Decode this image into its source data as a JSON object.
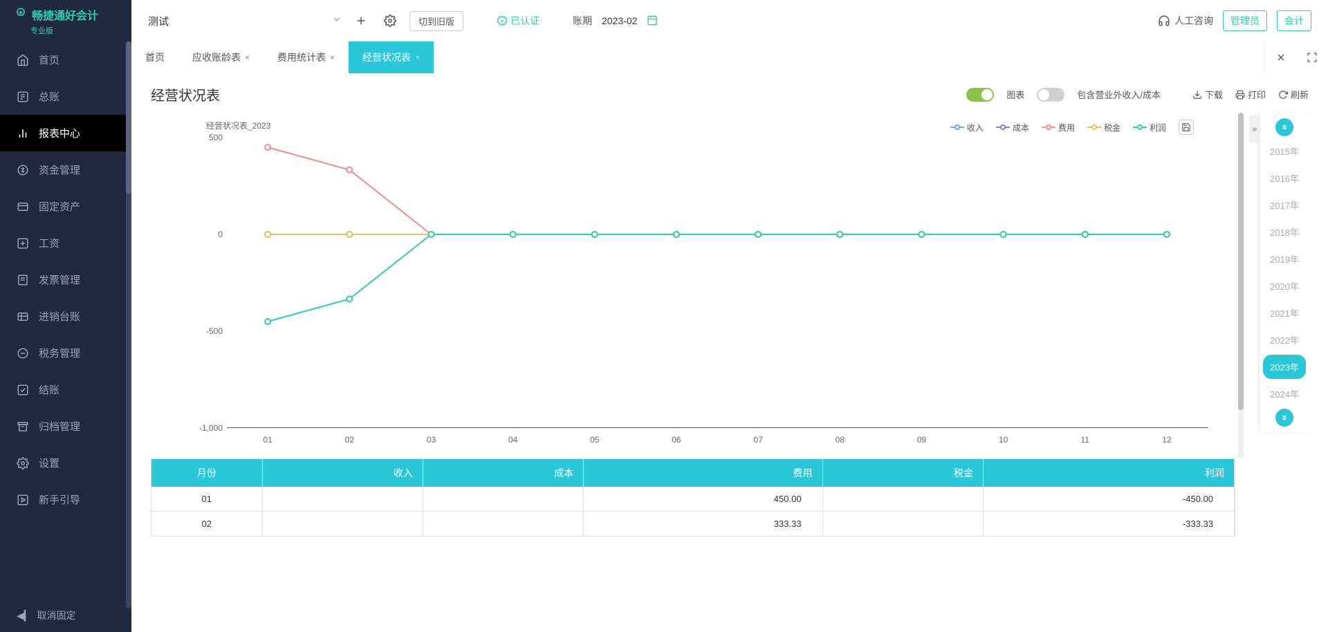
{
  "brand": {
    "name": "畅捷通好会计",
    "edition": "专业版"
  },
  "sidebar": {
    "items": [
      {
        "label": "首页",
        "icon": "home"
      },
      {
        "label": "总账",
        "icon": "ledger"
      },
      {
        "label": "报表中心",
        "icon": "chart",
        "active": true
      },
      {
        "label": "资金管理",
        "icon": "money"
      },
      {
        "label": "固定资产",
        "icon": "asset"
      },
      {
        "label": "工资",
        "icon": "salary"
      },
      {
        "label": "发票管理",
        "icon": "invoice"
      },
      {
        "label": "进销台账",
        "icon": "purchase"
      },
      {
        "label": "税务管理",
        "icon": "tax"
      },
      {
        "label": "结账",
        "icon": "close-period"
      },
      {
        "label": "归档管理",
        "icon": "archive"
      },
      {
        "label": "设置",
        "icon": "settings"
      },
      {
        "label": "新手引导",
        "icon": "guide"
      }
    ],
    "footer": "取消固定"
  },
  "topbar": {
    "company": "测试",
    "old_version_btn": "切到旧版",
    "verified": "已认证",
    "period_label": "账期",
    "period_value": "2023-02",
    "support": "人工咨询",
    "role_admin": "管理员",
    "role_acct": "会计"
  },
  "tabs": [
    {
      "label": "首页",
      "closable": false
    },
    {
      "label": "应收账龄表",
      "closable": true
    },
    {
      "label": "费用统计表",
      "closable": true
    },
    {
      "label": "经营状况表",
      "closable": true,
      "active": true
    }
  ],
  "page": {
    "title": "经营状况表",
    "toggle_chart_label": "图表",
    "toggle_include_label": "包含营业外收入/成本",
    "download": "下载",
    "print": "打印",
    "refresh": "刷新"
  },
  "chart": {
    "title": "经营状况表_2023",
    "type": "line",
    "x_categories": [
      "01",
      "02",
      "03",
      "04",
      "05",
      "06",
      "07",
      "08",
      "09",
      "10",
      "11",
      "12"
    ],
    "y_ticks": [
      500,
      0,
      -500,
      -1000
    ],
    "ylim": [
      -1000,
      500
    ],
    "series": [
      {
        "name": "收入",
        "color": "#6aa5e6",
        "data": [
          0,
          0,
          0,
          0,
          0,
          0,
          0,
          0,
          0,
          0,
          0,
          0
        ]
      },
      {
        "name": "成本",
        "color": "#8a7bd6",
        "data": [
          0,
          0,
          0,
          0,
          0,
          0,
          0,
          0,
          0,
          0,
          0,
          0
        ]
      },
      {
        "name": "费用",
        "color": "#f28b8b",
        "data": [
          450,
          333.33,
          0,
          0,
          0,
          0,
          0,
          0,
          0,
          0,
          0,
          0
        ]
      },
      {
        "name": "税金",
        "color": "#e6c25a",
        "data": [
          0,
          0,
          0,
          0,
          0,
          0,
          0,
          0,
          0,
          0,
          0,
          0
        ]
      },
      {
        "name": "利润",
        "color": "#2dcdb2",
        "data": [
          -450,
          -333.33,
          0,
          0,
          0,
          0,
          0,
          0,
          0,
          0,
          0,
          0
        ]
      }
    ],
    "marker_fill": "#ffffff",
    "line_width": 2,
    "marker_radius": 4,
    "axis_color": "#555555",
    "grid_color": "#e0e0e0",
    "label_fontsize": 12
  },
  "table": {
    "columns": [
      "月份",
      "收入",
      "成本",
      "费用",
      "税金",
      "利润"
    ],
    "header_bg": "#29c7d7",
    "header_color": "#ffffff",
    "rows": [
      [
        "01",
        "",
        "",
        "450.00",
        "",
        "-450.00"
      ],
      [
        "02",
        "",
        "",
        "333.33",
        "",
        "-333.33"
      ]
    ]
  },
  "years": {
    "list": [
      "2015年",
      "2016年",
      "2017年",
      "2018年",
      "2019年",
      "2020年",
      "2021年",
      "2022年",
      "2023年",
      "2024年"
    ],
    "active": "2023年"
  }
}
